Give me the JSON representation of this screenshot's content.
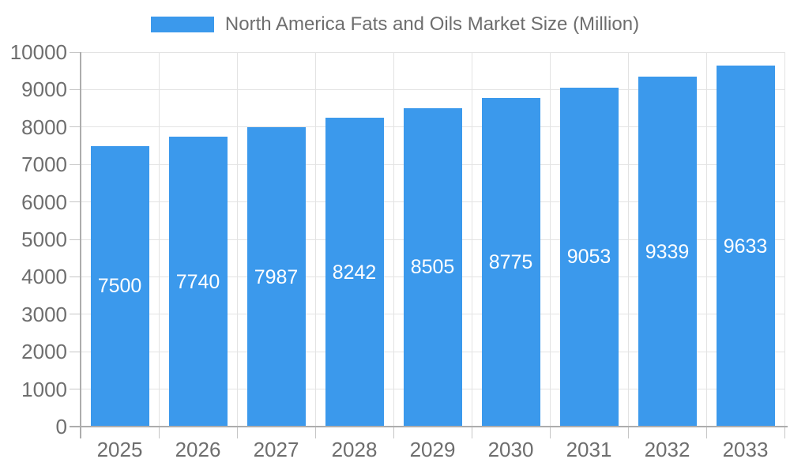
{
  "chart_data": {
    "type": "bar",
    "title": "North America Fats and Oils Market Size (Million)",
    "categories": [
      "2025",
      "2026",
      "2027",
      "2028",
      "2029",
      "2030",
      "2031",
      "2032",
      "2033"
    ],
    "series": [
      {
        "name": "North America Fats and Oils Market Size (Million)",
        "values": [
          7500,
          7740,
          7987,
          8242,
          8505,
          8775,
          9053,
          9339,
          9633
        ]
      }
    ],
    "xlabel": "",
    "ylabel": "",
    "ylim": [
      0,
      10000
    ],
    "ytick_step": 1000,
    "grid": true,
    "legend_position": "top",
    "value_labels": "inside-center",
    "colors": {
      "bar": "#3B99EC",
      "value_label_text": "#FFFFFF",
      "axis_text": "#6E6E6E",
      "legend_text": "#6E6E6E",
      "grid_line": "#E3E3E3",
      "axis_line": "#ADADAD",
      "tick_line": "#C6C6C6",
      "background": "#FFFFFF"
    }
  }
}
